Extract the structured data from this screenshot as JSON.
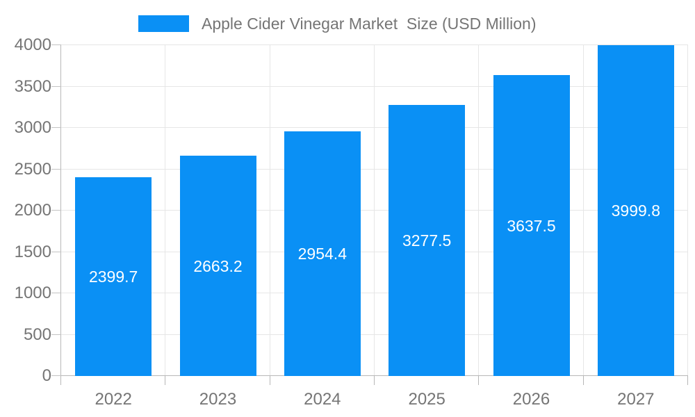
{
  "legend": {
    "label": "Apple Cider Vinegar Market  Size (USD Million)"
  },
  "colors": {
    "bar": "#0a90f5",
    "bar_label_text": "#ffffff",
    "grid": "#e6e6e6",
    "axis": "#b7b7b7",
    "tick": "#c3c3c3",
    "axis_text": "#757575",
    "background": "#ffffff"
  },
  "chart_data": {
    "type": "bar",
    "title": "Apple Cider Vinegar Market  Size (USD Million)",
    "categories": [
      "2022",
      "2023",
      "2024",
      "2025",
      "2026",
      "2027"
    ],
    "values": [
      2399.7,
      2663.2,
      2954.4,
      3277.5,
      3637.5,
      3999.8
    ],
    "value_labels": [
      "2399.7",
      "2663.2",
      "2954.4",
      "3277.5",
      "3637.5",
      "3999.8"
    ],
    "series_name": "Apple Cider Vinegar Market  Size (USD Million)",
    "xlabel": "",
    "ylabel": "",
    "ylim": [
      0,
      4000
    ],
    "y_ticks": [
      0,
      500,
      1000,
      1500,
      2000,
      2500,
      3000,
      3500,
      4000
    ],
    "y_tick_labels": [
      "0",
      "500",
      "1000",
      "1500",
      "2000",
      "2500",
      "3000",
      "3500",
      "4000"
    ],
    "grid": "horizontal-and-vertical",
    "legend_position": "top"
  }
}
